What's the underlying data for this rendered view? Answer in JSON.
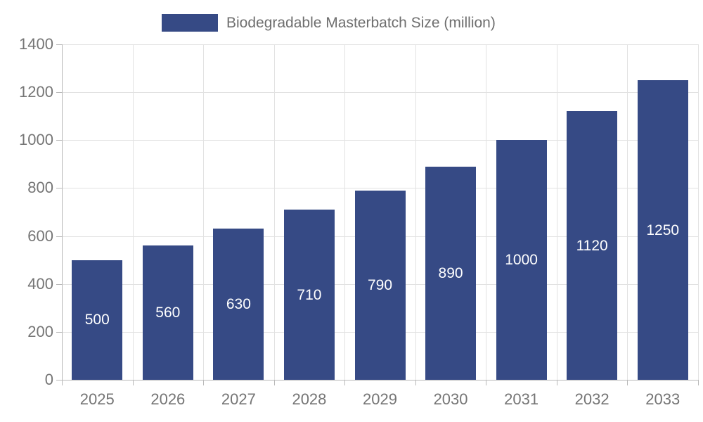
{
  "legend": {
    "label": "Biodegradable Masterbatch Size (million)"
  },
  "colors": {
    "bar": "#364a85",
    "grid": "#e2e2e2",
    "axis": "#b9b9b9",
    "axis_text": "#757575",
    "value_text": "#ffffff",
    "legend_text": "#6e6e6e",
    "background": "#ffffff"
  },
  "chart_data": {
    "type": "bar",
    "categories": [
      "2025",
      "2026",
      "2027",
      "2028",
      "2029",
      "2030",
      "2031",
      "2032",
      "2033"
    ],
    "values": [
      500,
      560,
      630,
      710,
      790,
      890,
      1000,
      1120,
      1250
    ],
    "series_name": "Biodegradable Masterbatch Size (million)",
    "title": "",
    "xlabel": "",
    "ylabel": "",
    "ylim": [
      0,
      1400
    ],
    "yticks": [
      0,
      200,
      400,
      600,
      800,
      1000,
      1200,
      1400
    ],
    "grid": true,
    "legend_position": "top",
    "value_label_position": "inside-center"
  }
}
